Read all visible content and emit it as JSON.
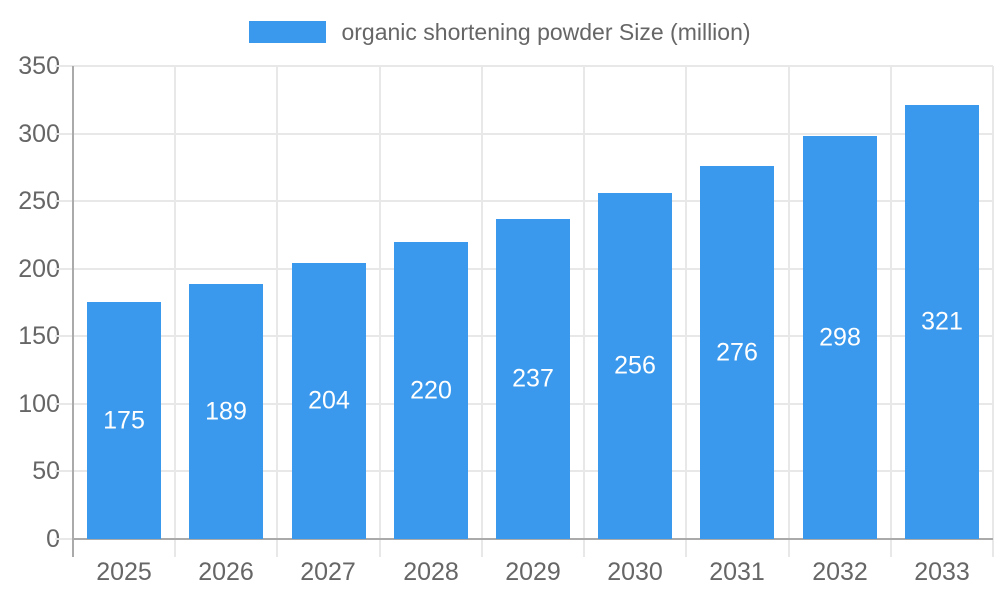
{
  "legend": {
    "label": "organic shortening powder Size (million)"
  },
  "colors": {
    "bar": "#3A99EC",
    "grid_line": "#E8E8E8",
    "axis_line": "#AAAAAA",
    "axis_text": "#666666",
    "bar_label": "#FFFFFF",
    "background": "#FFFFFF"
  },
  "chart_data": {
    "type": "bar",
    "title": "organic shortening powder Size (million)",
    "categories": [
      "2025",
      "2026",
      "2027",
      "2028",
      "2029",
      "2030",
      "2031",
      "2032",
      "2033"
    ],
    "values": [
      175,
      189,
      204,
      220,
      237,
      256,
      276,
      298,
      321
    ],
    "series_name": "organic shortening powder Size (million)",
    "xlabel": "",
    "ylabel": "",
    "ylim": [
      0,
      350
    ],
    "ytick_step": 50,
    "yticks": [
      0,
      50,
      100,
      150,
      200,
      250,
      300,
      350
    ],
    "grid": "both",
    "legend_position": "top-center",
    "value_labels": "inside-center"
  }
}
